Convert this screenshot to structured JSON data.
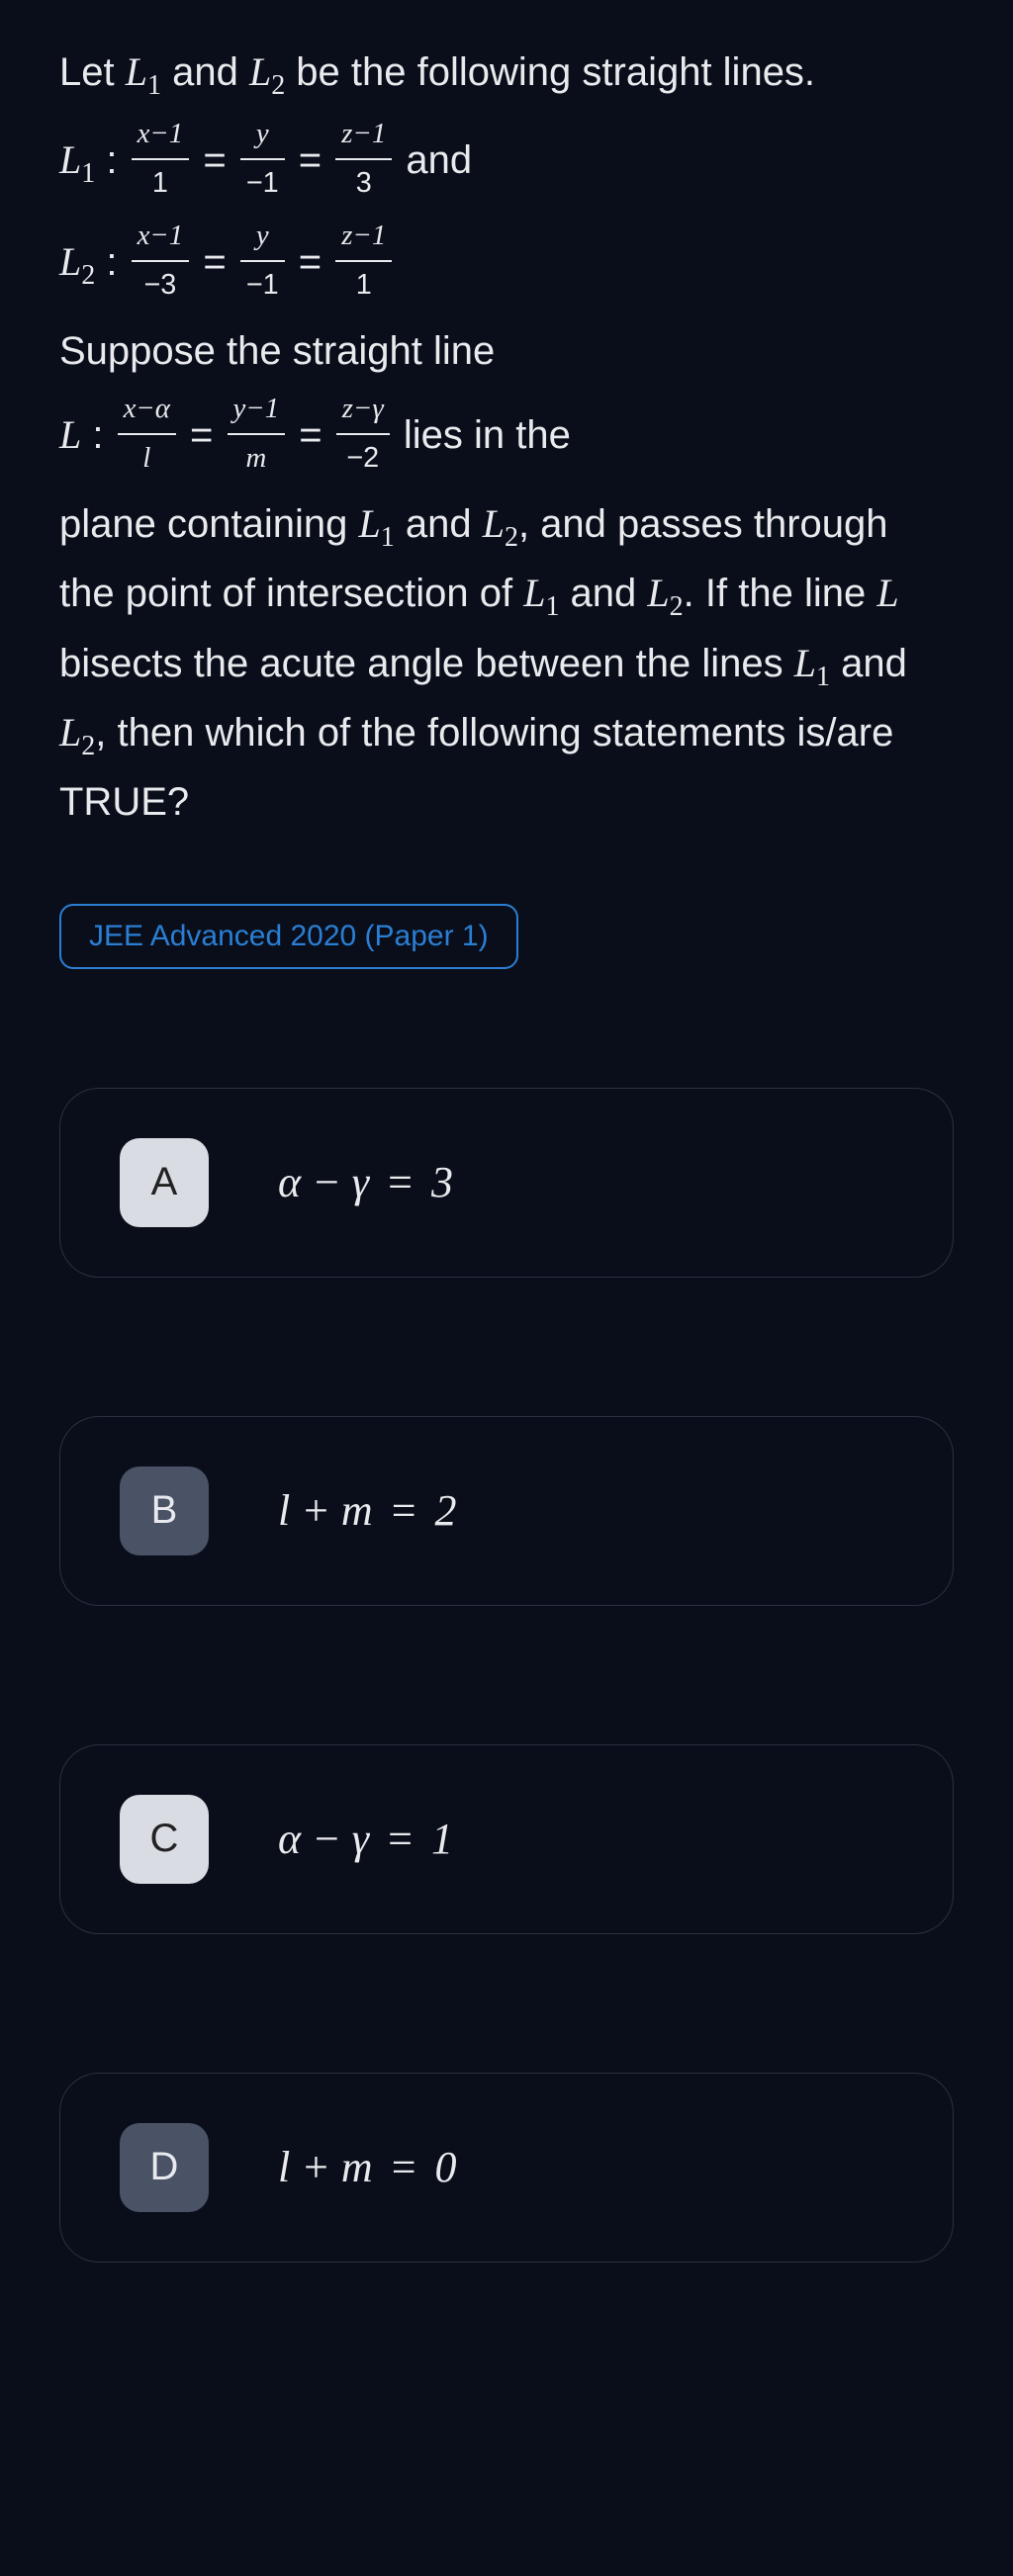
{
  "colors": {
    "background": "#0a0e1a",
    "text": "#e8eaed",
    "tag_border": "#2a7fd4",
    "tag_text": "#2a7fd4",
    "option_border": "#2a3142",
    "badge_light_bg": "#d9dce3",
    "badge_light_text": "#222222",
    "badge_dark_bg": "#4a5266",
    "badge_dark_text": "#e8eaed"
  },
  "question": {
    "intro1": "Let ",
    "L1": "L",
    "sub1": "1",
    "and1": " and ",
    "L2": "L",
    "sub2": "2",
    "intro2": " be the following straight lines.",
    "line1": {
      "label": "L",
      "labelsub": "1",
      "sep": " : ",
      "f1n": "x−1",
      "f1d": "1",
      "f2n": "y",
      "f2d": "−1",
      "f3n": "z−1",
      "f3d": "3",
      "tail": " and"
    },
    "line2": {
      "label": "L",
      "labelsub": "2",
      "sep": " : ",
      "f1n": "x−1",
      "f1d": "−3",
      "f2n": "y",
      "f2d": "−1",
      "f3n": "z−1",
      "f3d": "1"
    },
    "suppose": "Suppose the straight line",
    "lineL": {
      "label": "L",
      "sep": " : ",
      "f1n": "x−α",
      "f1d": "l",
      "f2n": "y−1",
      "f2d": "m",
      "f3n": "z−γ",
      "f3d": "−2",
      "tail": " lies in the"
    },
    "rest1a": "plane containing ",
    "rest1b": " and ",
    "rest1c": ", and passes through the point of intersection of ",
    "rest1d": " and ",
    "rest1e": ". If the line ",
    "Lsolo": "L",
    "rest2": " bisects the acute angle between the lines ",
    "rest3a": " and ",
    "rest3b": ", then which of the following statements is/are TRUE?"
  },
  "tag": "JEE Advanced 2020 (Paper 1)",
  "options": [
    {
      "letter": "A",
      "style": "light",
      "lhs": "α − γ",
      "rhs": "3"
    },
    {
      "letter": "B",
      "style": "dark",
      "lhs": "l + m",
      "rhs": "2"
    },
    {
      "letter": "C",
      "style": "light",
      "lhs": "α − γ",
      "rhs": "1"
    },
    {
      "letter": "D",
      "style": "dark",
      "lhs": "l + m",
      "rhs": "0"
    }
  ]
}
